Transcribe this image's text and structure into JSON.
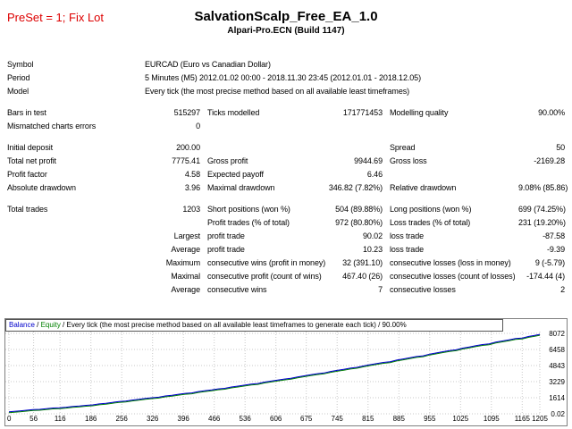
{
  "header": {
    "preset": "PreSet = 1; Fix Lot",
    "title": "SalvationScalp_Free_EA_1.0",
    "subtitle": "Alpari-Pro.ECN (Build 1147)"
  },
  "report": {
    "rows": [
      {
        "wide": true,
        "cells": [
          "Symbol",
          "EURCAD (Euro vs Canadian Dollar)"
        ]
      },
      {
        "wide": true,
        "cells": [
          "Period",
          "5 Minutes (M5) 2012.01.02 00:00 - 2018.11.30 23:45 (2012.01.01 - 2018.12.05)"
        ]
      },
      {
        "wide": true,
        "cells": [
          "Model",
          "Every tick (the most precise method based on all available least timeframes)"
        ]
      },
      {
        "gap": true,
        "cells": [
          "Bars in test",
          "515297",
          "Ticks modelled",
          "171771453",
          "Modelling quality",
          "90.00%"
        ]
      },
      {
        "cells": [
          "Mismatched charts errors",
          "0",
          "",
          "",
          "",
          ""
        ]
      },
      {
        "gap": true,
        "cells": [
          "Initial deposit",
          "200.00",
          "",
          "",
          "Spread",
          "50"
        ]
      },
      {
        "cells": [
          "Total net profit",
          "7775.41",
          "Gross profit",
          "9944.69",
          "Gross loss",
          "-2169.28"
        ]
      },
      {
        "cells": [
          "Profit factor",
          "4.58",
          "Expected payoff",
          "6.46",
          "",
          ""
        ]
      },
      {
        "cells": [
          "Absolute drawdown",
          "3.96",
          "Maximal drawdown",
          "346.82 (7.82%)",
          "Relative drawdown",
          "9.08% (85.86)"
        ]
      },
      {
        "gap": true,
        "cells": [
          "Total trades",
          "1203",
          "Short positions (won %)",
          "504 (89.88%)",
          "Long positions (won %)",
          "699 (74.25%)"
        ]
      },
      {
        "cells": [
          "",
          "",
          "Profit trades (% of total)",
          "972 (80.80%)",
          "Loss trades (% of total)",
          "231 (19.20%)"
        ]
      },
      {
        "cells": [
          "",
          "Largest",
          "profit trade",
          "90.02",
          "loss trade",
          "-87.58"
        ]
      },
      {
        "cells": [
          "",
          "Average",
          "profit trade",
          "10.23",
          "loss trade",
          "-9.39"
        ]
      },
      {
        "cells": [
          "",
          "Maximum",
          "consecutive wins (profit in money)",
          "32 (391.10)",
          "consecutive losses (loss in money)",
          "9 (-5.79)"
        ]
      },
      {
        "cells": [
          "",
          "Maximal",
          "consecutive profit (count of wins)",
          "467.40 (26)",
          "consecutive losses (count of losses)",
          "-174.44 (4)"
        ]
      },
      {
        "cells": [
          "",
          "Average",
          "consecutive wins",
          "7",
          "consecutive losses",
          "2"
        ]
      }
    ]
  },
  "chart_data": {
    "type": "line",
    "legend": {
      "balance_label": "Balance",
      "sep": " / ",
      "equity_label": "Equity",
      "suffix": " / Every tick (the most precise method based on all available least timeframes to generate each tick) / 90.00%"
    },
    "balance_color": "#0000cc",
    "equity_color": "#008000",
    "grid_color": "#c8c8c8",
    "x_max": 1205,
    "y_max": 8072,
    "x_ticks": [
      0,
      56,
      116,
      186,
      256,
      326,
      396,
      466,
      536,
      606,
      675,
      745,
      815,
      885,
      955,
      1025,
      1095,
      1165,
      1205
    ],
    "y_ticks": [
      {
        "label": "8072",
        "value": 8072
      },
      {
        "label": "6458",
        "value": 6458
      },
      {
        "label": "4843",
        "value": 4843
      },
      {
        "label": "3229",
        "value": 3229
      },
      {
        "label": "1614",
        "value": 1614
      },
      {
        "label": "0.02",
        "value": 0
      }
    ],
    "series": [
      {
        "name": "Balance",
        "points": [
          [
            0,
            200
          ],
          [
            12,
            240
          ],
          [
            25,
            300
          ],
          [
            40,
            360
          ],
          [
            55,
            420
          ],
          [
            70,
            445
          ],
          [
            85,
            520
          ],
          [
            100,
            585
          ],
          [
            115,
            610
          ],
          [
            130,
            660
          ],
          [
            145,
            745
          ],
          [
            160,
            790
          ],
          [
            175,
            855
          ],
          [
            190,
            900
          ],
          [
            205,
            1000
          ],
          [
            220,
            1060
          ],
          [
            235,
            1150
          ],
          [
            250,
            1230
          ],
          [
            265,
            1270
          ],
          [
            280,
            1380
          ],
          [
            295,
            1455
          ],
          [
            310,
            1540
          ],
          [
            325,
            1615
          ],
          [
            340,
            1670
          ],
          [
            355,
            1790
          ],
          [
            370,
            1870
          ],
          [
            385,
            1960
          ],
          [
            400,
            2050
          ],
          [
            415,
            2100
          ],
          [
            430,
            2230
          ],
          [
            445,
            2320
          ],
          [
            460,
            2400
          ],
          [
            475,
            2500
          ],
          [
            490,
            2560
          ],
          [
            505,
            2690
          ],
          [
            520,
            2780
          ],
          [
            535,
            2880
          ],
          [
            550,
            2980
          ],
          [
            565,
            3040
          ],
          [
            580,
            3180
          ],
          [
            595,
            3280
          ],
          [
            610,
            3390
          ],
          [
            625,
            3490
          ],
          [
            640,
            3560
          ],
          [
            655,
            3700
          ],
          [
            670,
            3810
          ],
          [
            685,
            3920
          ],
          [
            700,
            4030
          ],
          [
            715,
            4100
          ],
          [
            730,
            4250
          ],
          [
            745,
            4360
          ],
          [
            760,
            4470
          ],
          [
            775,
            4580
          ],
          [
            790,
            4660
          ],
          [
            805,
            4810
          ],
          [
            820,
            4930
          ],
          [
            835,
            5040
          ],
          [
            850,
            5160
          ],
          [
            865,
            5230
          ],
          [
            880,
            5390
          ],
          [
            895,
            5510
          ],
          [
            910,
            5630
          ],
          [
            925,
            5750
          ],
          [
            940,
            5820
          ],
          [
            955,
            5990
          ],
          [
            970,
            6110
          ],
          [
            985,
            6230
          ],
          [
            1000,
            6350
          ],
          [
            1015,
            6420
          ],
          [
            1030,
            6590
          ],
          [
            1045,
            6710
          ],
          [
            1060,
            6830
          ],
          [
            1075,
            6950
          ],
          [
            1090,
            7020
          ],
          [
            1105,
            7190
          ],
          [
            1120,
            7310
          ],
          [
            1135,
            7430
          ],
          [
            1150,
            7550
          ],
          [
            1165,
            7610
          ],
          [
            1180,
            7770
          ],
          [
            1192,
            7860
          ],
          [
            1205,
            7975
          ]
        ]
      },
      {
        "name": "Equity",
        "points_ref": "Balance"
      }
    ]
  }
}
